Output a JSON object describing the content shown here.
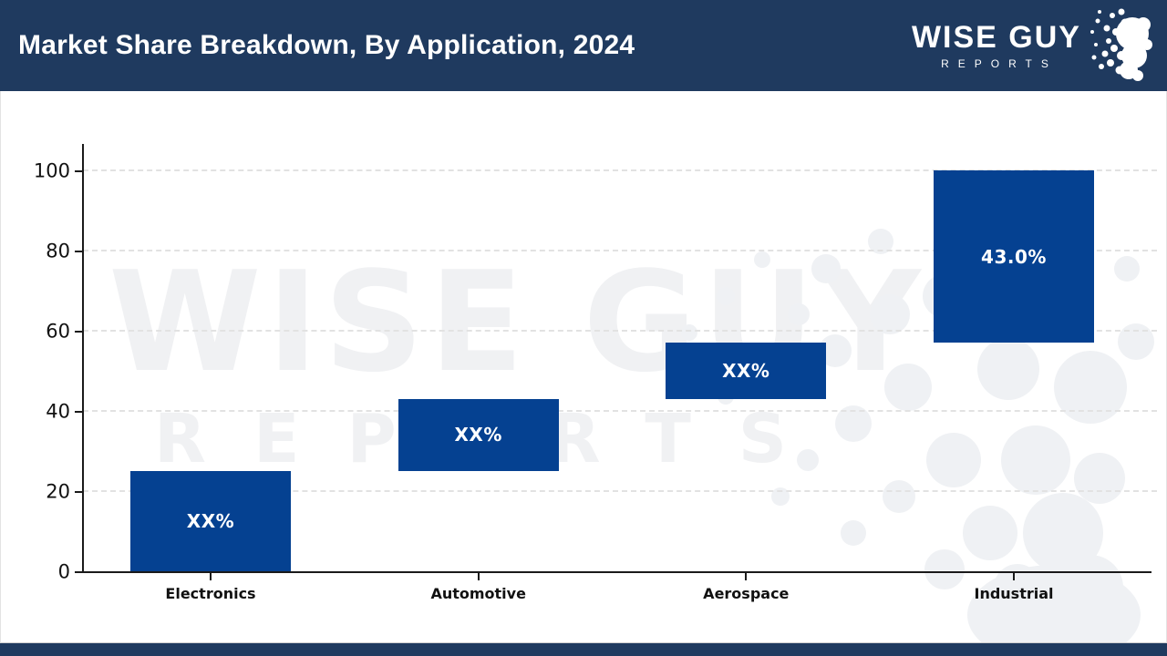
{
  "header": {
    "title": "Market Share Breakdown, By Application, 2024",
    "bg_color": "#1f3a5f",
    "logo": {
      "line1": "WISE GUY",
      "line2": "REPORTS"
    }
  },
  "watermark": {
    "line1": "WISE GUY",
    "line2": "REPORTS"
  },
  "footer": {
    "bg_color": "#1f3a5f"
  },
  "chart_data": {
    "type": "bar",
    "subtype": "floating-waterfall",
    "title": "Market Share Breakdown, By Application, 2024",
    "categories": [
      "Electronics",
      "Automotive",
      "Aerospace",
      "Industrial"
    ],
    "values": [
      25,
      18,
      14,
      43
    ],
    "segments": [
      {
        "category": "Electronics",
        "start": 0,
        "end": 25,
        "label": "XX%"
      },
      {
        "category": "Automotive",
        "start": 25,
        "end": 43,
        "label": "XX%"
      },
      {
        "category": "Aerospace",
        "start": 43,
        "end": 57,
        "label": "XX%"
      },
      {
        "category": "Industrial",
        "start": 57,
        "end": 100,
        "label": "43.0%"
      }
    ],
    "unit": "%",
    "xlabel": "",
    "ylabel": "",
    "yticks": [
      0,
      20,
      40,
      60,
      80,
      100
    ],
    "ylim": [
      0,
      106
    ],
    "grid": "horizontal-dashed",
    "legend": "none",
    "bar_color": "#054191",
    "axis_color": "#1a1a1a",
    "gridline_color": "#e2e2e2"
  }
}
